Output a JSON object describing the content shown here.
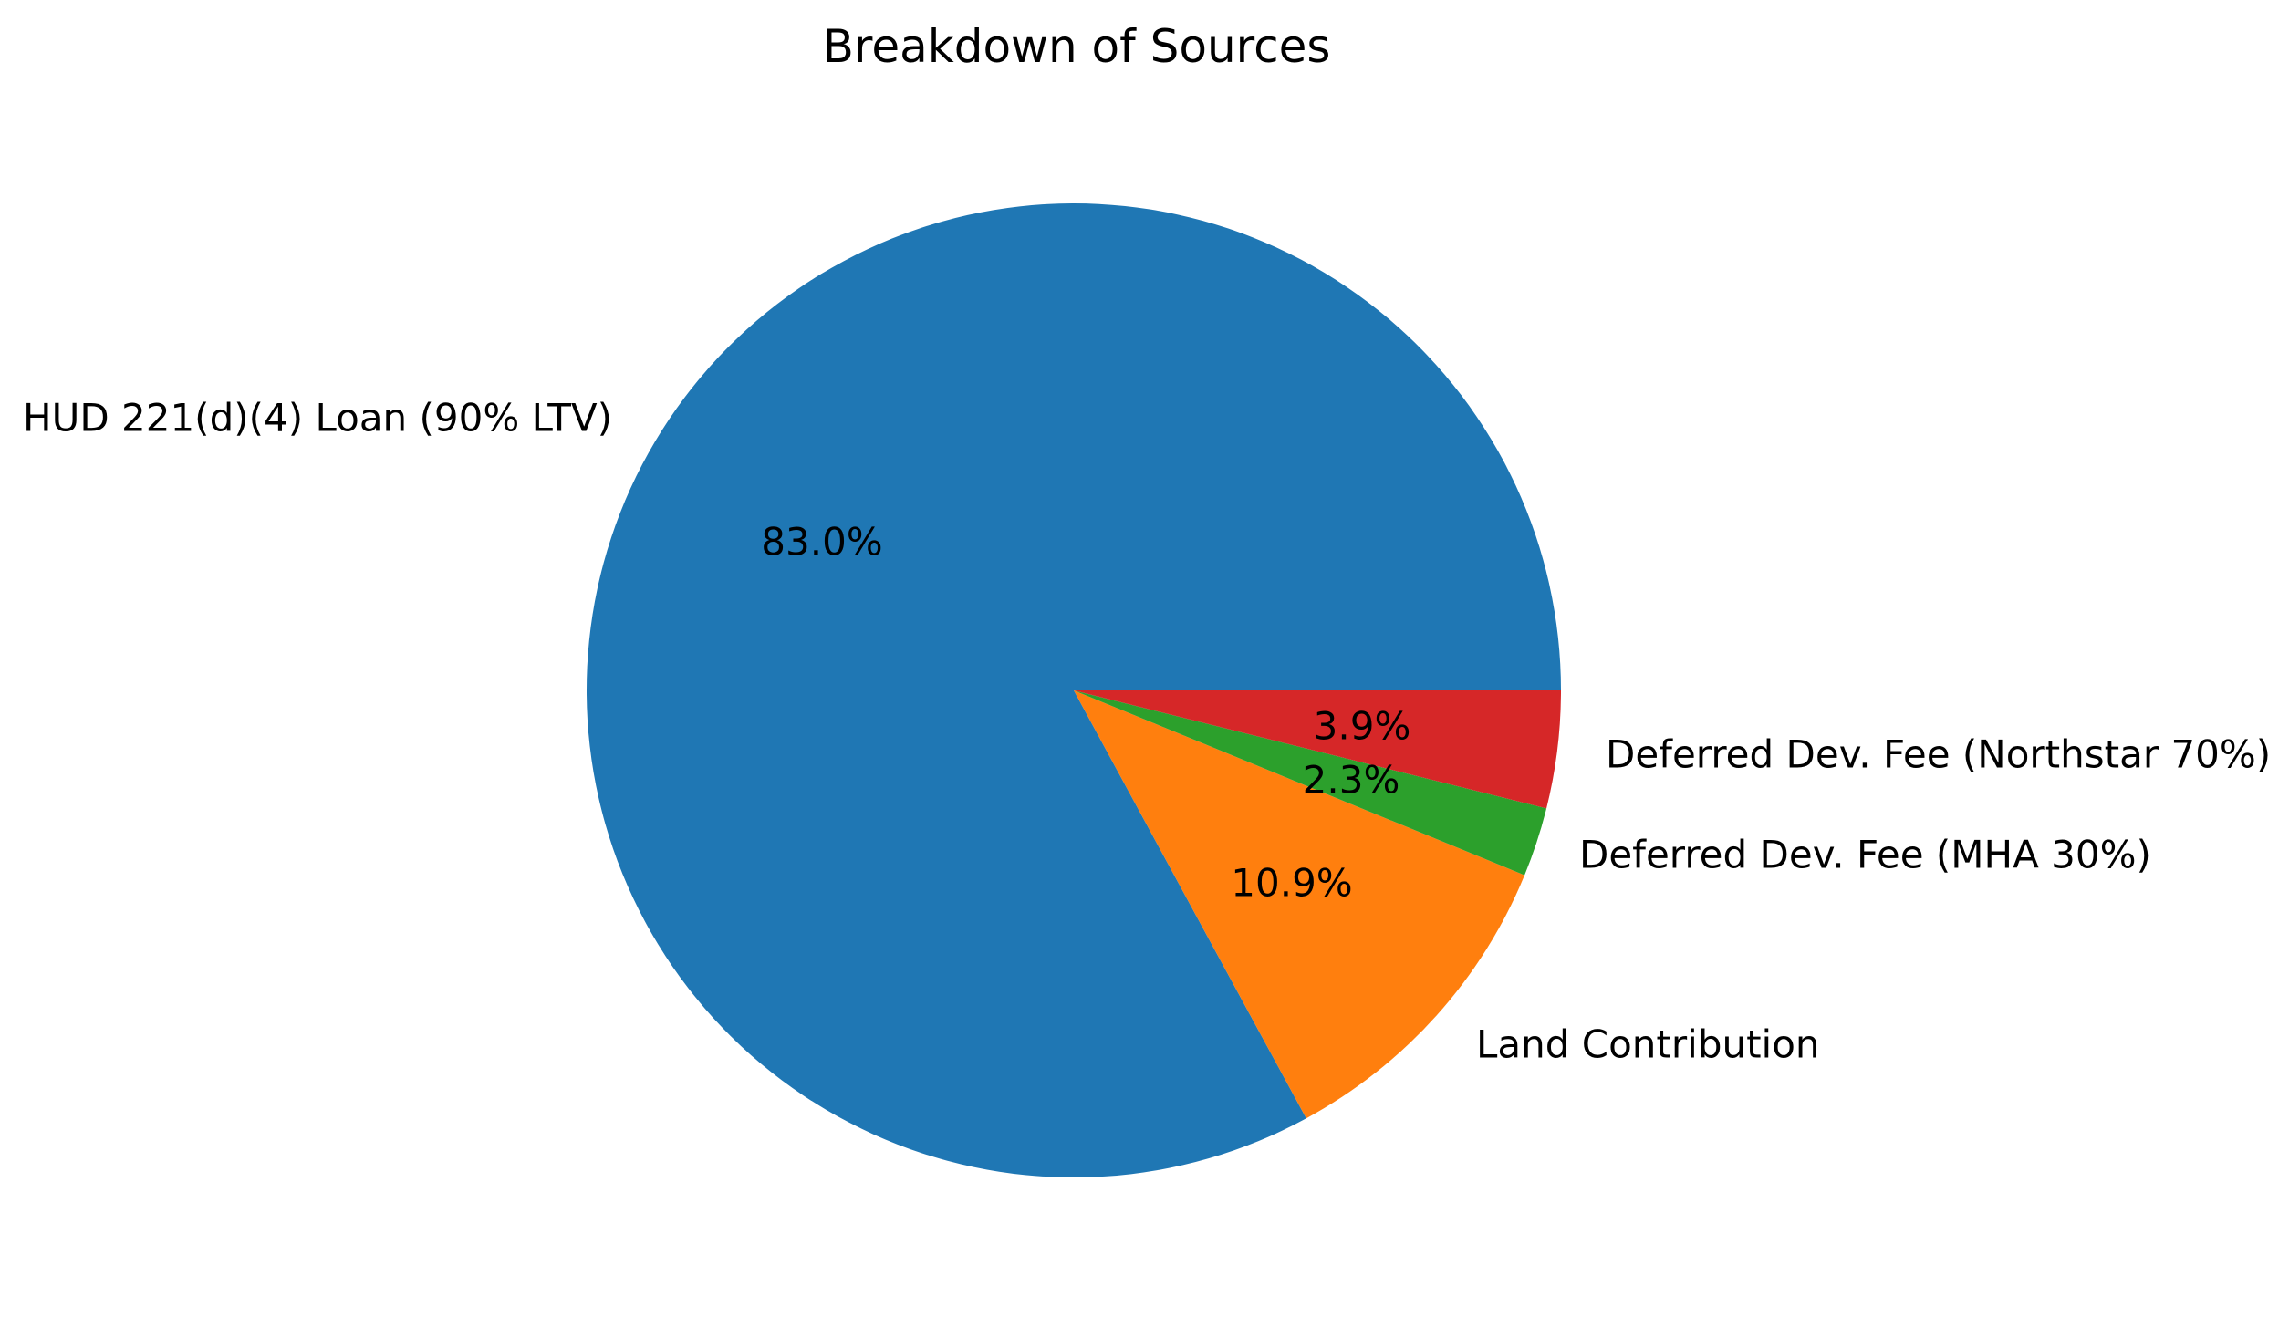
{
  "chart_data": {
    "type": "pie",
    "title": "Breakdown of Sources",
    "start_angle_deg": 0,
    "direction": "counterclockwise",
    "legend": "none",
    "slices": [
      {
        "label": "HUD 221(d)(4) Loan (90% LTV)",
        "value": 83.0,
        "pct_label": "83.0%",
        "color": "#1f77b4"
      },
      {
        "label": "Land Contribution",
        "value": 10.9,
        "pct_label": "10.9%",
        "color": "#ff7f0e"
      },
      {
        "label": "Deferred Dev. Fee (MHA 30%)",
        "value": 2.3,
        "pct_label": "2.3%",
        "color": "#2ca02c"
      },
      {
        "label": "Deferred Dev. Fee (Northstar 70%)",
        "value": 3.9,
        "pct_label": "3.9%",
        "color": "#d62728"
      }
    ]
  }
}
